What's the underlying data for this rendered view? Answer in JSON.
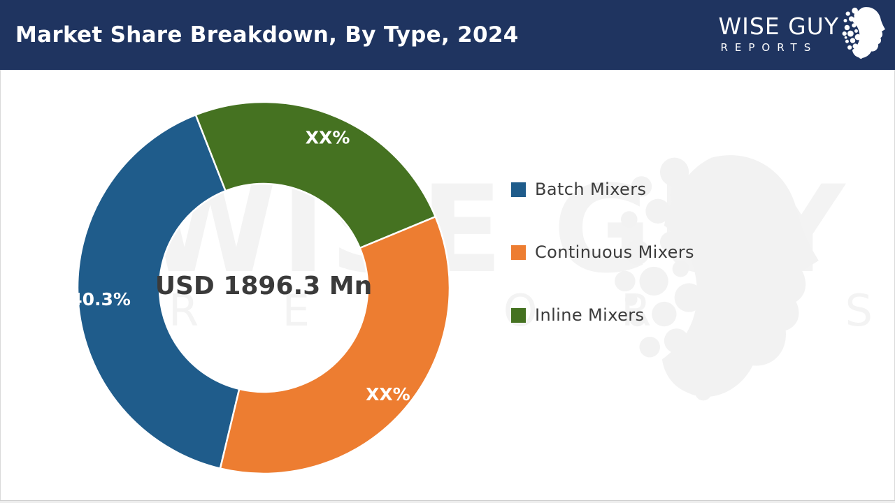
{
  "header": {
    "title": "Market Share Breakdown, By Type, 2024",
    "logo": {
      "line1": "WISE GUY",
      "line2": "REPORTS"
    }
  },
  "watermark": {
    "line1": "WISE GUY",
    "line2": "R E P O R T S"
  },
  "chart_data": {
    "type": "donut",
    "title": "Market Share Breakdown, By Type, 2024",
    "center_label": "USD 1896.3 Mn",
    "start_angle_deg": 193.5,
    "direction": "clockwise",
    "inner_radius_ratio": 0.56,
    "label_radius_ratio": 0.88,
    "series": [
      {
        "name": "Batch Mixers",
        "value_pct": 40.3,
        "label": "40.3%",
        "color": "#1f5c8b"
      },
      {
        "name": "Inline Mixers",
        "value_pct": 24.7,
        "label": "XX%",
        "color": "#457221"
      },
      {
        "name": "Continuous Mixers",
        "value_pct": 35.0,
        "label": "XX%",
        "color": "#ed7d31"
      }
    ],
    "legend": {
      "position": "right",
      "items": [
        {
          "name": "Batch Mixers",
          "color": "#1f5c8b"
        },
        {
          "name": "Continuous Mixers",
          "color": "#ed7d31"
        },
        {
          "name": "Inline Mixers",
          "color": "#457221"
        }
      ]
    }
  },
  "colors": {
    "header_bg": "#1f3460",
    "text_dark": "#3a3a3a",
    "watermark": "#f3f3f3"
  }
}
